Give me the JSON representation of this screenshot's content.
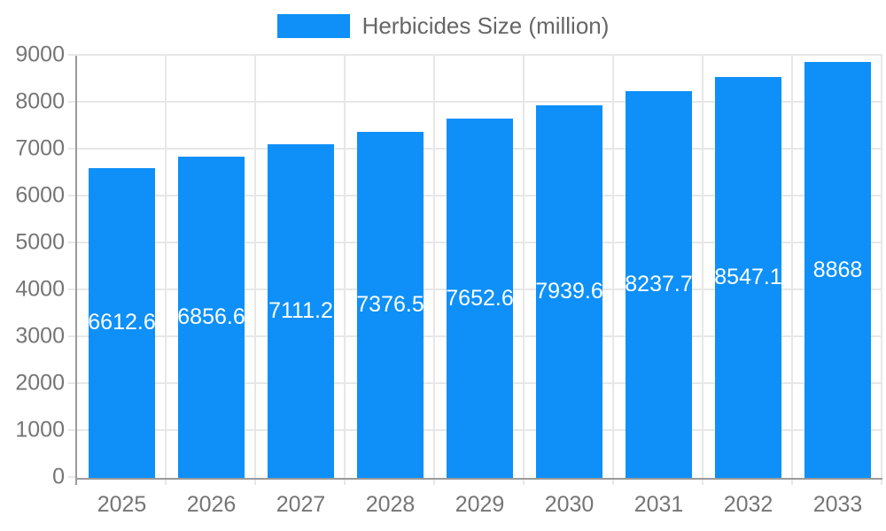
{
  "legend": {
    "label": "Herbicides Size (million)"
  },
  "chart_data": {
    "type": "bar",
    "title": "",
    "legend_label": "Herbicides Size (million)",
    "categories": [
      "2025",
      "2026",
      "2027",
      "2028",
      "2029",
      "2030",
      "2031",
      "2032",
      "2033"
    ],
    "series": [
      {
        "name": "Herbicides Size (million)",
        "values": [
          6612.6,
          6856.6,
          7111.2,
          7376.5,
          7652.6,
          7939.6,
          8237.7,
          8547.1,
          8868
        ]
      }
    ],
    "value_labels": [
      "6612.6",
      "6856.6",
      "7111.2",
      "7376.5",
      "7652.6",
      "7939.6",
      "8237.7",
      "8547.1",
      "8868"
    ],
    "xlabel": "",
    "ylabel": "",
    "ylim": [
      0,
      9000
    ],
    "y_ticks": [
      0,
      1000,
      2000,
      3000,
      4000,
      5000,
      6000,
      7000,
      8000,
      9000
    ],
    "grid": true,
    "legend_position": "top",
    "colors": {
      "bar": "#0e90f8",
      "grid": "#e7e7e7",
      "axis": "#9a9a9a",
      "tick_label": "#757575",
      "legend_text": "#666666",
      "value_label": "#ffffff",
      "background": "#ffffff"
    }
  }
}
